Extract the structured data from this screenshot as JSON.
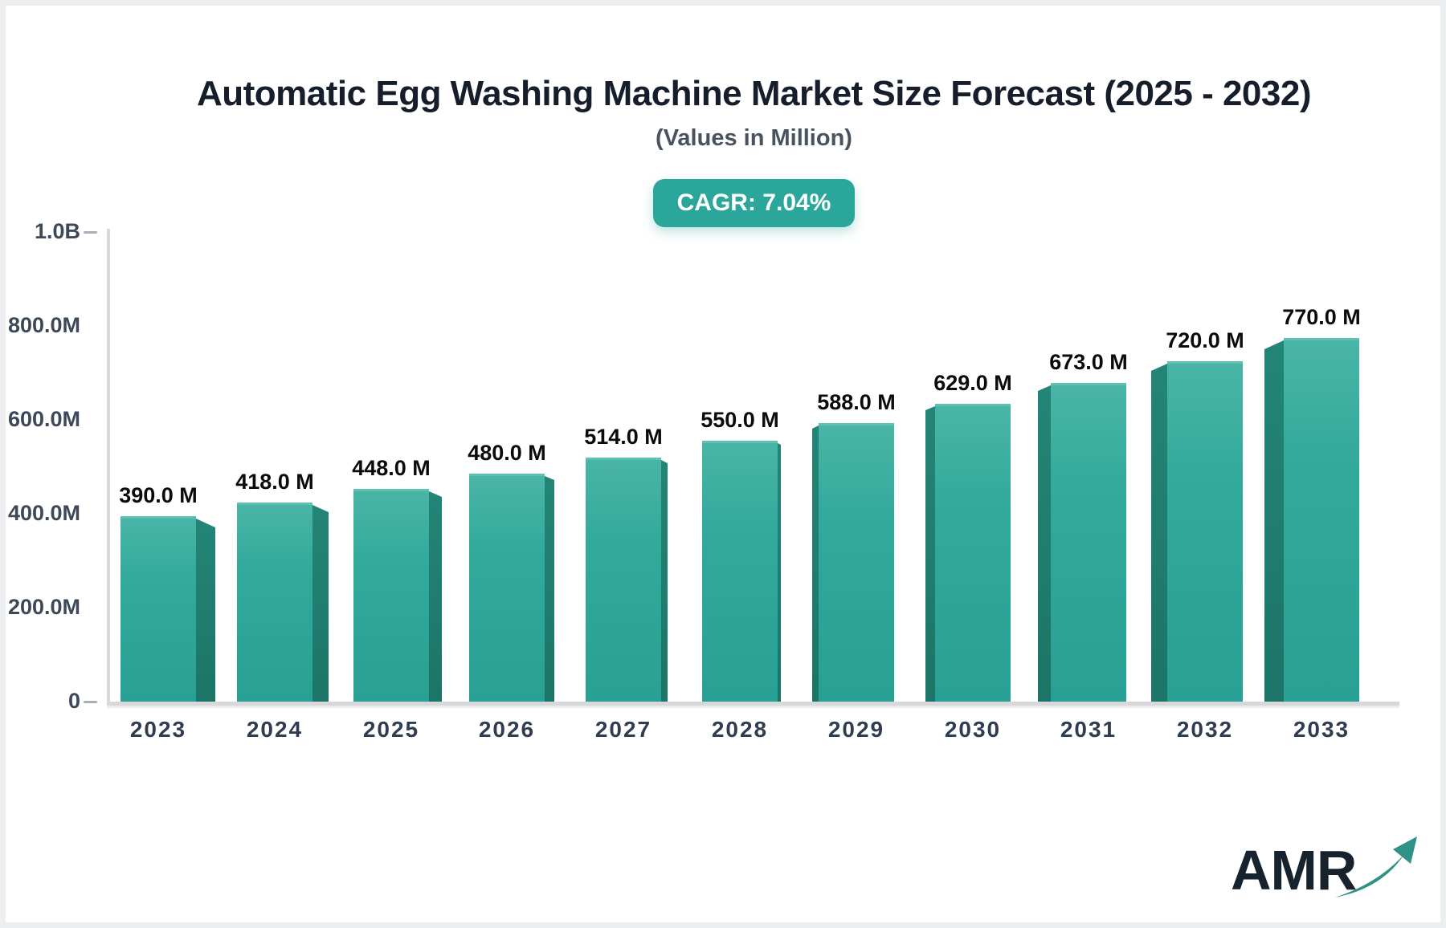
{
  "header": {
    "title": "Automatic Egg Washing Machine Market Size Forecast (2025 - 2032)",
    "subtitle": "(Values in Million)",
    "cagr_badge": "CAGR: 7.04%"
  },
  "chart_data": {
    "type": "bar",
    "title": "Automatic Egg Washing Machine Market Size Forecast (2025 - 2032)",
    "subtitle": "(Values in Million)",
    "categories": [
      "2023",
      "2024",
      "2025",
      "2026",
      "2027",
      "2028",
      "2029",
      "2030",
      "2031",
      "2032",
      "2033"
    ],
    "values": [
      390,
      418,
      448,
      480,
      514,
      550,
      588,
      629,
      673,
      720,
      770
    ],
    "value_labels": [
      "390.0 M",
      "418.0 M",
      "448.0 M",
      "480.0 M",
      "514.0 M",
      "550.0 M",
      "588.0 M",
      "629.0 M",
      "673.0 M",
      "720.0 M",
      "770.0 M"
    ],
    "cagr_label": "CAGR: 7.04%",
    "xlabel": "",
    "ylabel": "",
    "ylim": [
      0,
      1000
    ],
    "grid": false,
    "legend": "none",
    "yticks": [
      {
        "label": "1.0B",
        "value": 1000,
        "dash": true
      },
      {
        "label": "800.0M",
        "value": 800,
        "dash": false
      },
      {
        "label": "600.0M",
        "value": 600,
        "dash": false
      },
      {
        "label": "400.0M",
        "value": 400,
        "dash": false
      },
      {
        "label": "200.0M",
        "value": 200,
        "dash": false
      },
      {
        "label": "0",
        "value": 0,
        "dash": true
      }
    ]
  },
  "colors": {
    "bar_front_top": "#49b5a6",
    "bar_front_bottom": "#28a093",
    "bar_top_edge": "#5ec0b1",
    "bar_side": "#1e7e70",
    "badge_bg": "#2aa79a",
    "badge_text": "#ffffff",
    "axis_line": "#d6d8db",
    "title_text": "#161d2b",
    "subtitle_text": "#49525f",
    "axis_label_text": "#3e4859",
    "year_label_text": "#303c52",
    "value_label_text": "#0b0b0b",
    "logo_text": "#16222e",
    "logo_arrow": "#2f9288"
  },
  "logo": {
    "text": "AMR"
  }
}
